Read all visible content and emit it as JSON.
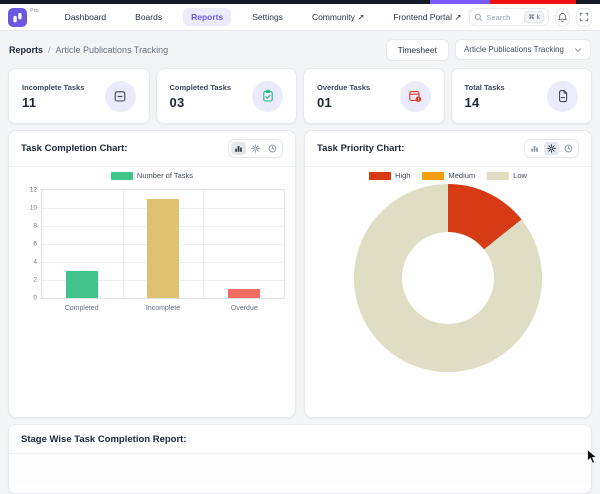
{
  "colors": {
    "bg": "#f3f4f6",
    "topbar": "#151b26",
    "top_purple": "#7a5af8",
    "top_red": "#ee1111",
    "accent": "#6a5ae0",
    "accent_soft": "#ecebfb",
    "border": "#e7e9ee",
    "navy": "#1d2737",
    "teal": "#2eb88a",
    "alert_red": "#e23e2b"
  },
  "navbar": {
    "logo_badge": "Pro",
    "items": [
      {
        "label": "Dashboard",
        "active": false
      },
      {
        "label": "Boards",
        "active": false
      },
      {
        "label": "Reports",
        "active": true
      },
      {
        "label": "Settings",
        "active": false
      },
      {
        "label": "Community ↗",
        "active": false
      },
      {
        "label": "Frontend Portal ↗",
        "active": false
      }
    ],
    "search": {
      "placeholder": "Search",
      "shortcut": "⌘ k"
    }
  },
  "breadcrumb": {
    "root": "Reports",
    "separator": "/",
    "current": "Article Publications Tracking"
  },
  "toolbar": {
    "timesheet_label": "Timesheet",
    "board_selector_value": "Article Publications Tracking"
  },
  "stats": [
    {
      "label": "Incomplete Tasks",
      "value": "11",
      "icon": "calendar-minus-icon"
    },
    {
      "label": "Completed Tasks",
      "value": "03",
      "icon": "clipboard-check-icon"
    },
    {
      "label": "Overdue Tasks",
      "value": "01",
      "icon": "calendar-alert-icon"
    },
    {
      "label": "Total Tasks",
      "value": "14",
      "icon": "file-icon"
    }
  ],
  "sections": {
    "completion_chart_title": "Task Completion Chart:",
    "priority_chart_title": "Task Priority Chart:",
    "stage_report_title": "Stage Wise Task Completion Report:"
  },
  "chart_data": [
    {
      "type": "bar",
      "title": "Task Completion Chart",
      "categories": [
        "Completed",
        "Incomplete",
        "Overdue"
      ],
      "values": [
        3,
        11,
        1
      ],
      "bar_colors": [
        "#41c48a",
        "#dfc271",
        "#f36c61"
      ],
      "legend": [
        {
          "label": "Number of Tasks",
          "color": "#41c48a"
        }
      ],
      "legend_position": "top",
      "xlabel": "",
      "ylabel": "",
      "ylim": [
        0,
        12
      ],
      "yticks": [
        0,
        2,
        4,
        6,
        8,
        10,
        12
      ],
      "grid": true
    },
    {
      "type": "pie",
      "title": "Task Priority Chart",
      "donut": true,
      "labels": [
        "High",
        "Medium",
        "Low"
      ],
      "values": [
        2,
        0,
        12
      ],
      "colors": [
        "#d63b16",
        "#f59e0b",
        "#dfddc3"
      ],
      "legend_position": "top",
      "start_angle_deg": 0
    }
  ]
}
